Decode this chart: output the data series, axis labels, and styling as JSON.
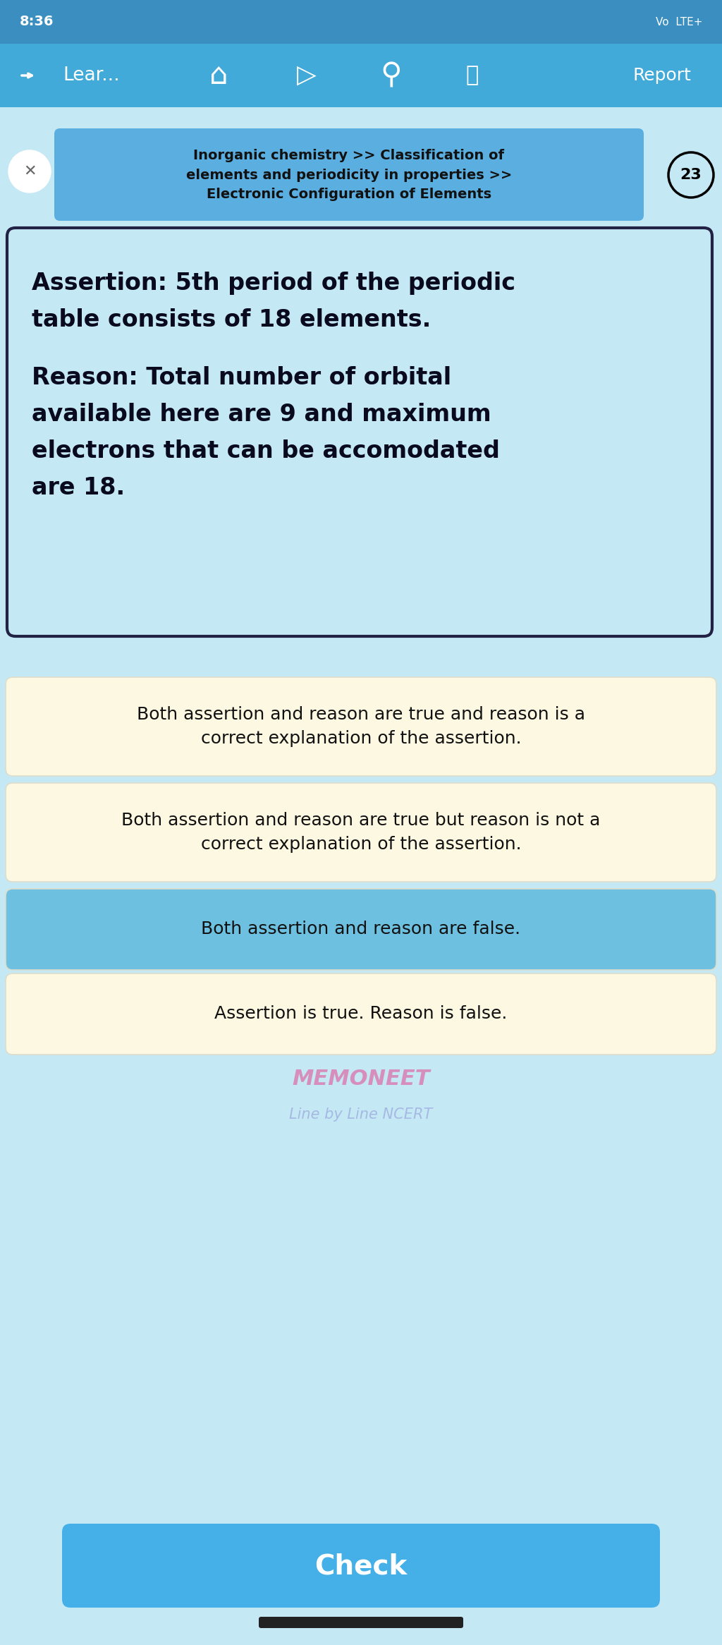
{
  "bg_color": "#c5e8f5",
  "status_bar_color": "#3a8fc0",
  "nav_bar_color": "#42aad8",
  "status_bar_text": "8:36",
  "status_bar_right": "Vo  LTE+",
  "nav_title": "Lear...",
  "nav_report": "Report",
  "breadcrumb_text": "Inorganic chemistry >> Classification of\nelements and periodicity in properties >>\nElectronic Configuration of Elements",
  "breadcrumb_number": "23",
  "breadcrumb_bg": "#5aaee0",
  "option1_text": "Both assertion and reason are true and reason is a\ncorrect explanation of the assertion.",
  "option2_text": "Both assertion and reason are true but reason is not a\ncorrect explanation of the assertion.",
  "option3_text": "Both assertion and reason are false.",
  "option4_text": "Assertion is true. Reason is false.",
  "option1_bg": "#fdf8e1",
  "option2_bg": "#fdf8e1",
  "option3_bg": "#6ec0e0",
  "option4_bg": "#fdf8e1",
  "check_button_text": "Check",
  "check_button_bg": "#45b0e8",
  "watermark_text": "MEMONEET",
  "sub_watermark": "Line by Line NCERT",
  "assertion_line1": "Assertion: 5th period of the periodic",
  "assertion_line2": "table consists of 18 elements.",
  "reason_line1": "Reason: Total number of orbital",
  "reason_line2": "available here are 9 and maximum",
  "reason_line3": "electrons that can be accomodated",
  "reason_line4": "are 18."
}
